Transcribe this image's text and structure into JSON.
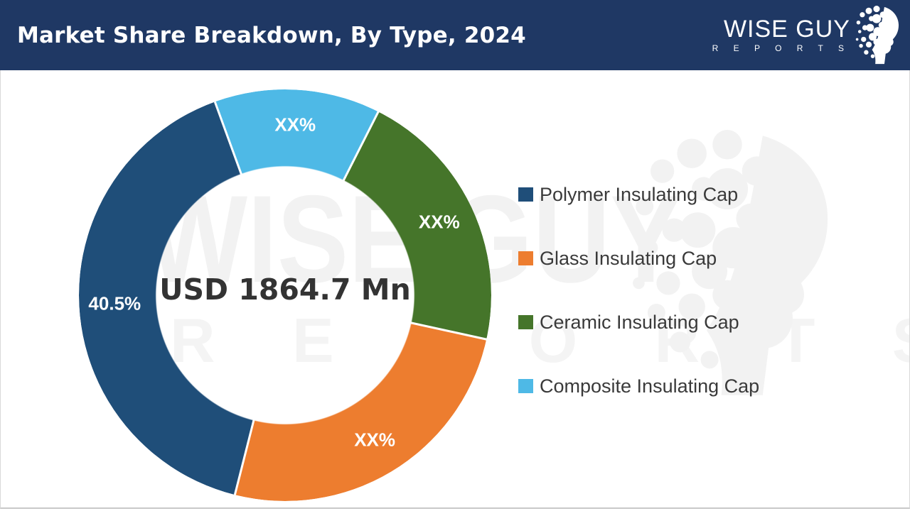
{
  "header": {
    "title": "Market Share Breakdown, By Type, 2024",
    "bg_color": "#1f3864",
    "logo": {
      "line1": "WISE GUY",
      "line2": "R E P O R T S"
    }
  },
  "watermark": {
    "line1": "WISE GUY",
    "line2": "R E P O R T S"
  },
  "chart_data": {
    "type": "pie",
    "subtype": "donut",
    "title": "Market Share Breakdown, By Type, 2024",
    "center_label": "USD 1864.7 Mn",
    "legend_position": "right",
    "start_angle_deg": -20,
    "label_radius_px": 240,
    "segments": [
      {
        "label": "Composite Insulating Cap",
        "display_value": "XX%",
        "pct": 13.0,
        "color": "#4eb9e6"
      },
      {
        "label": "Ceramic Insulating Cap",
        "display_value": "XX%",
        "pct": 21.0,
        "color": "#45752a"
      },
      {
        "label": "Glass Insulating Cap",
        "display_value": "XX%",
        "pct": 25.5,
        "color": "#ed7d2f"
      },
      {
        "label": "Polymer Insulating Cap",
        "display_value": "40.5%",
        "pct": 40.5,
        "color": "#1f4e79"
      }
    ],
    "legend": [
      {
        "label": "Polymer Insulating Cap",
        "color": "#1f4e79"
      },
      {
        "label": "Glass Insulating Cap",
        "color": "#ed7d2f"
      },
      {
        "label": "Ceramic Insulating Cap",
        "color": "#45752a"
      },
      {
        "label": "Composite Insulating Cap",
        "color": "#4eb9e6"
      }
    ]
  }
}
